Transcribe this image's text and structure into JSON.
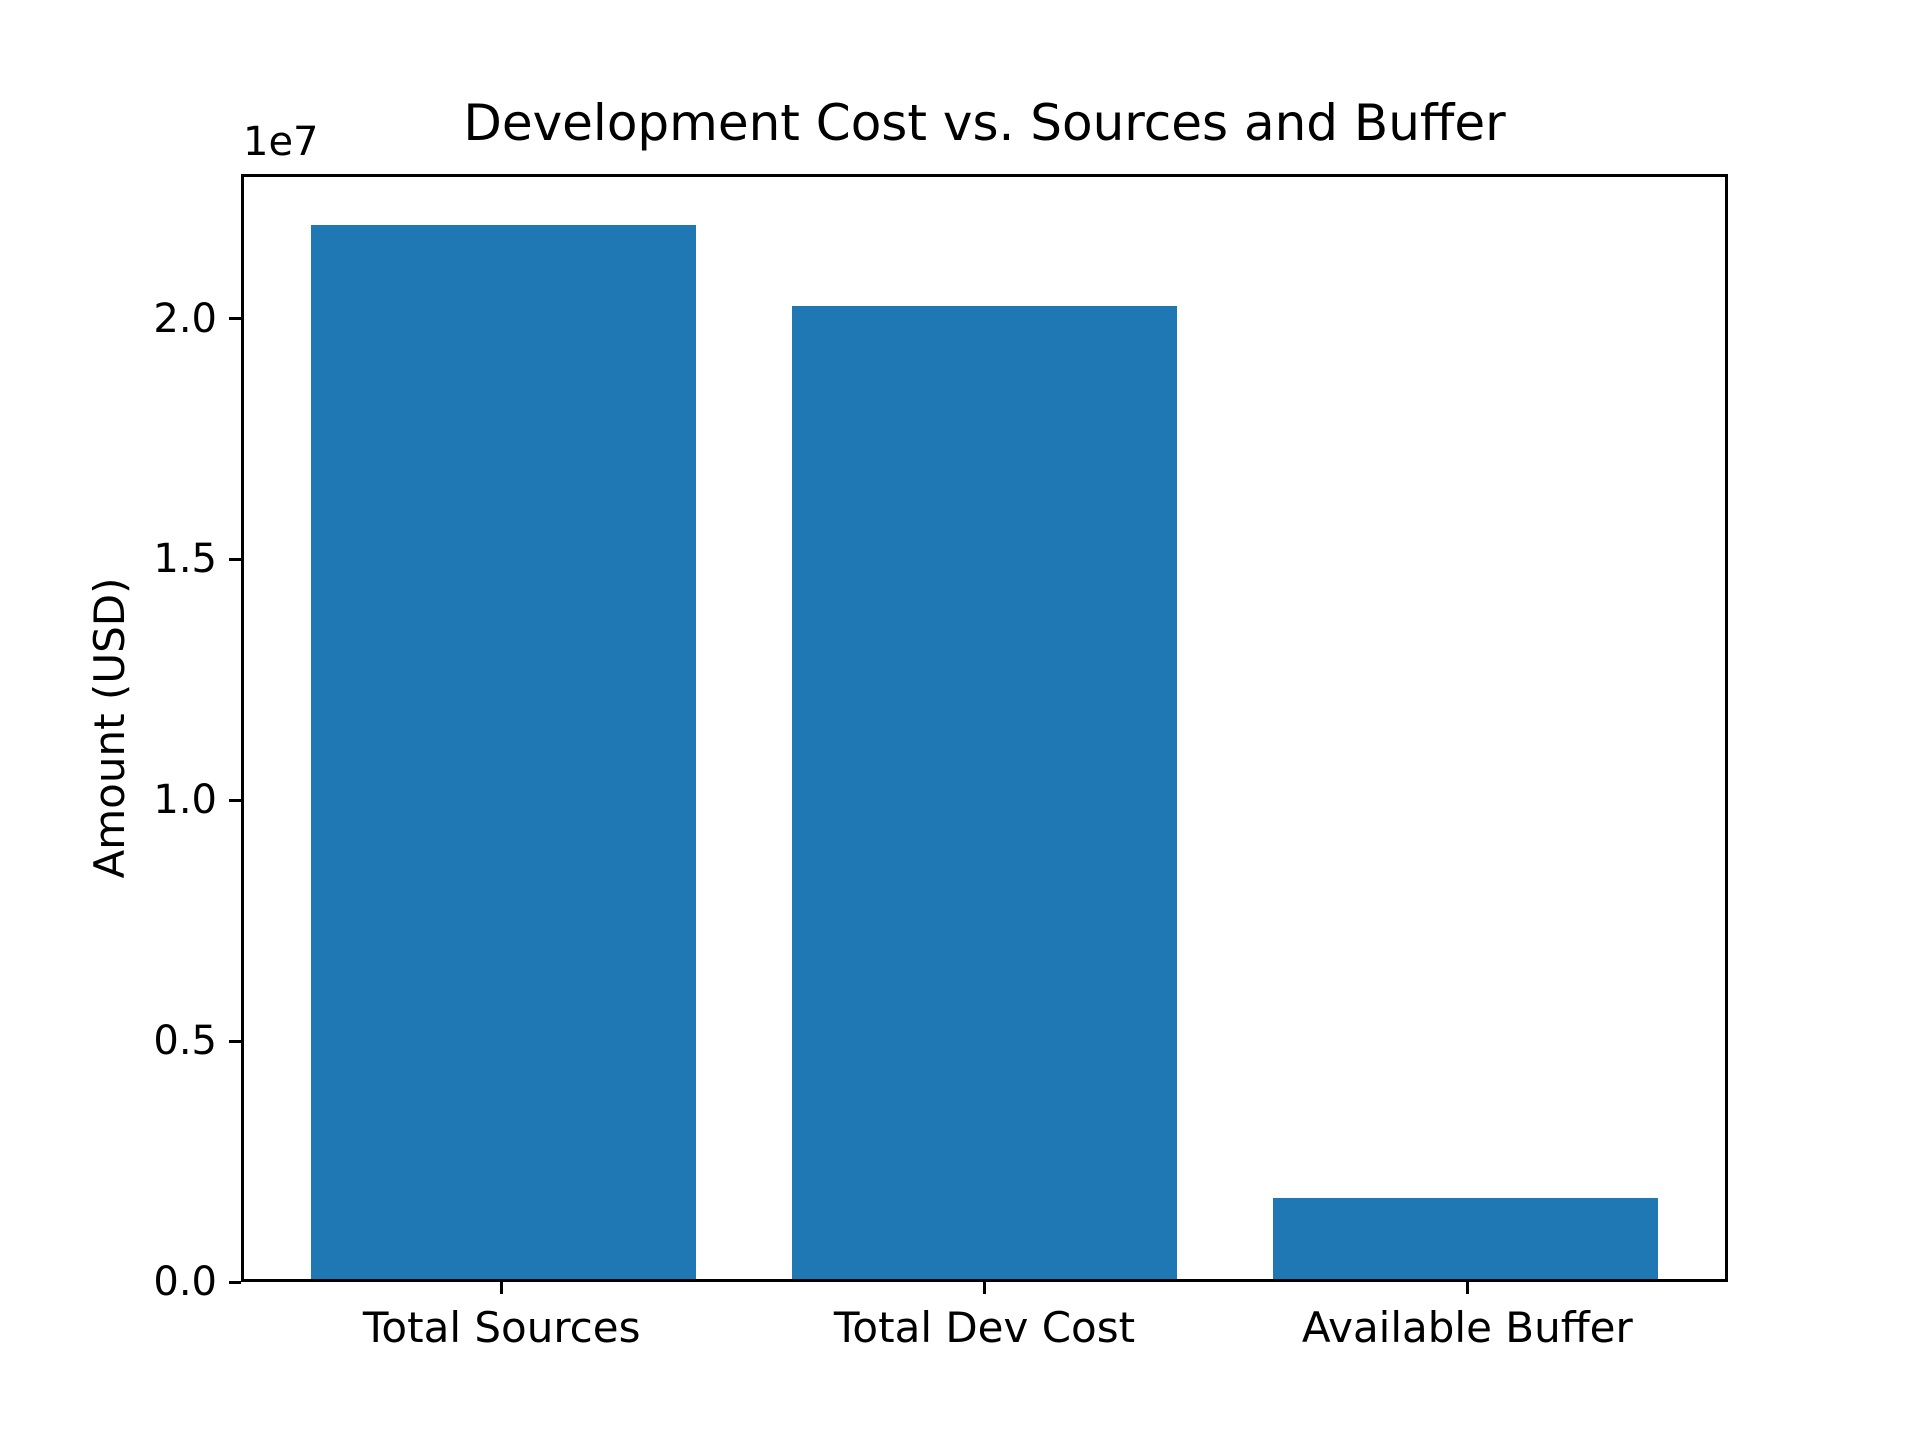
{
  "chart_data": {
    "type": "bar",
    "title": "Development Cost vs. Sources and Buffer",
    "xlabel": "",
    "ylabel": "Amount (USD)",
    "offset_text": "1e7",
    "categories": [
      "Total Sources",
      "Total Dev Cost",
      "Available Buffer"
    ],
    "values": [
      22000000,
      20300000,
      1700000
    ],
    "ylim": [
      0,
      23000000
    ],
    "xlim": [
      -0.54,
      2.54
    ],
    "yticks": [
      0,
      5000000,
      10000000,
      15000000,
      20000000
    ],
    "ytick_labels": [
      "0.0",
      "0.5",
      "1.0",
      "1.5",
      "2.0"
    ],
    "bar_width": 0.8,
    "grid": false,
    "legend": false,
    "colors": {
      "bar": "#1f77b4",
      "spine": "#000000",
      "text": "#000000",
      "background": "#ffffff"
    }
  }
}
